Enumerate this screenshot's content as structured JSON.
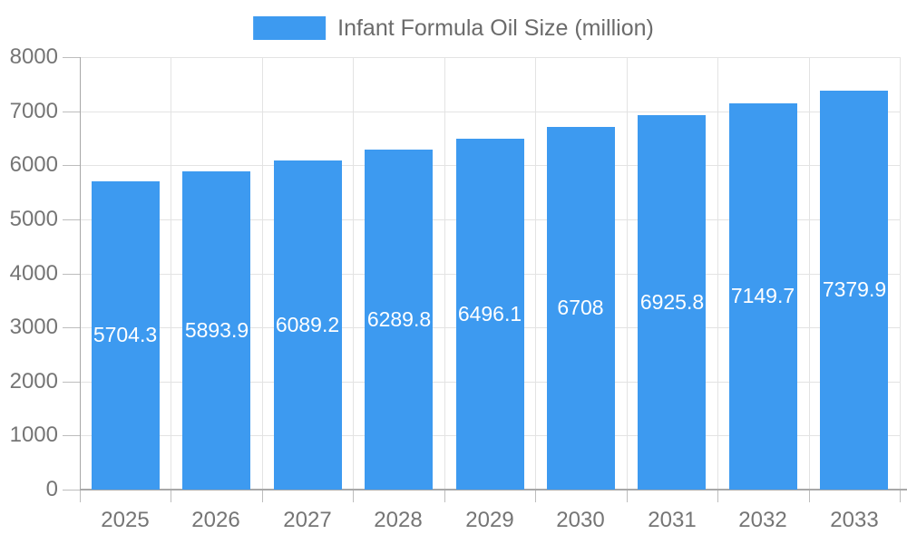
{
  "chart_data": {
    "type": "bar",
    "title": "Infant Formula Oil Size (million)",
    "categories": [
      "2025",
      "2026",
      "2027",
      "2028",
      "2029",
      "2030",
      "2031",
      "2032",
      "2033"
    ],
    "values": [
      5704.3,
      5893.9,
      6089.2,
      6289.8,
      6496.1,
      6708,
      6925.8,
      7149.7,
      7379.9
    ],
    "value_labels": [
      "5704.3",
      "5893.9",
      "6089.2",
      "6289.8",
      "6496.1",
      "6708",
      "6925.8",
      "7149.7",
      "7379.9"
    ],
    "ylim": [
      0,
      8000
    ],
    "ytick_step": 1000,
    "ytick_labels": [
      "0",
      "1000",
      "2000",
      "3000",
      "4000",
      "5000",
      "6000",
      "7000",
      "8000"
    ],
    "grid": true,
    "legend": {
      "position": "top",
      "label": "Infant Formula Oil Size (million)"
    },
    "colors": {
      "bar": "#3d9af0",
      "bar_label": "#ffffff",
      "axis_text": "#757575",
      "legend_text": "#6b6b6b",
      "grid_line": "#e3e3e3",
      "tick_line": "#bdbdbd",
      "axis_line": "#a8a8a8",
      "background": "#ffffff"
    }
  }
}
